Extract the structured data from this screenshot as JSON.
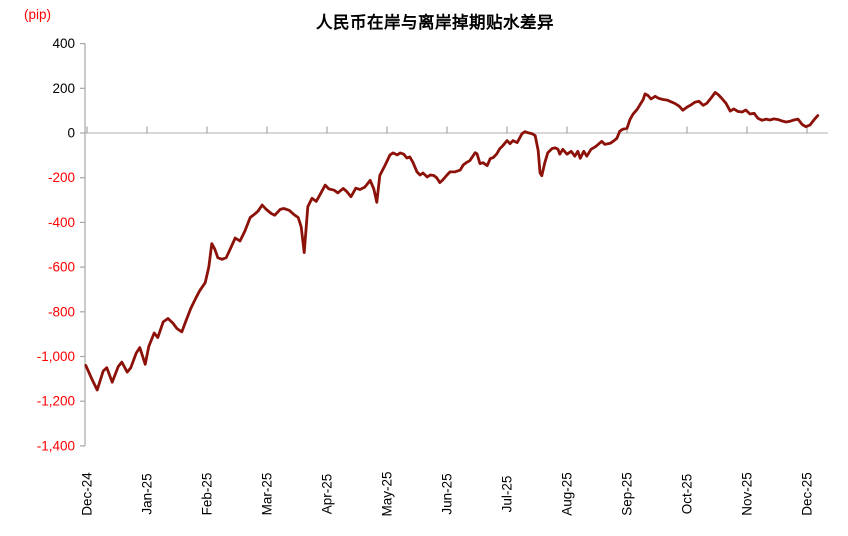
{
  "chart_data": {
    "type": "line",
    "title": "人民币在岸与离岸掉期贴水差异",
    "unit_label": "(pip)",
    "xlabel": "",
    "ylabel": "pip",
    "ylim": [
      -1400,
      400
    ],
    "grid": "zero-line-only",
    "legend": "none",
    "colors": {
      "line": "#8B1109",
      "axis": "#A6A6A6",
      "zero_line": "#C0C0C0",
      "tick_label_positive": "#000000",
      "tick_label_negative": "#FF0000",
      "unit_label": "#FF0000",
      "title": "#000000"
    },
    "y_ticks": [
      {
        "value": 400,
        "label": "400"
      },
      {
        "value": 200,
        "label": "200"
      },
      {
        "value": 0,
        "label": "0"
      },
      {
        "value": -200,
        "label": "-200"
      },
      {
        "value": -400,
        "label": "-400"
      },
      {
        "value": -600,
        "label": "-600"
      },
      {
        "value": -800,
        "label": "-800"
      },
      {
        "value": -1000,
        "label": "-1,000"
      },
      {
        "value": -1200,
        "label": "-1,200"
      },
      {
        "value": -1400,
        "label": "-1,400"
      }
    ],
    "x_tick_labels": [
      "Dec-24",
      "Jan-25",
      "Feb-25",
      "Mar-25",
      "Apr-25",
      "May-25",
      "Jun-25",
      "Jul-25",
      "Aug-25",
      "Sep-25",
      "Oct-25",
      "Nov-25",
      "Dec-25"
    ],
    "series": [
      {
        "x_unit": "months-after-Dec-24-tick",
        "y_unit": "pip",
        "points": [
          [
            -0.02,
            -1040
          ],
          [
            0.08,
            -1100
          ],
          [
            0.17,
            -1150
          ],
          [
            0.27,
            -1065
          ],
          [
            0.33,
            -1050
          ],
          [
            0.42,
            -1115
          ],
          [
            0.52,
            -1045
          ],
          [
            0.58,
            -1025
          ],
          [
            0.67,
            -1070
          ],
          [
            0.73,
            -1050
          ],
          [
            0.82,
            -985
          ],
          [
            0.88,
            -960
          ],
          [
            0.97,
            -1035
          ],
          [
            1.03,
            -955
          ],
          [
            1.12,
            -895
          ],
          [
            1.18,
            -915
          ],
          [
            1.27,
            -845
          ],
          [
            1.35,
            -830
          ],
          [
            1.43,
            -850
          ],
          [
            1.5,
            -875
          ],
          [
            1.58,
            -890
          ],
          [
            1.65,
            -840
          ],
          [
            1.73,
            -785
          ],
          [
            1.82,
            -735
          ],
          [
            1.88,
            -705
          ],
          [
            1.97,
            -670
          ],
          [
            2.03,
            -600
          ],
          [
            2.08,
            -495
          ],
          [
            2.13,
            -520
          ],
          [
            2.18,
            -558
          ],
          [
            2.25,
            -565
          ],
          [
            2.32,
            -558
          ],
          [
            2.4,
            -512
          ],
          [
            2.47,
            -470
          ],
          [
            2.55,
            -483
          ],
          [
            2.63,
            -440
          ],
          [
            2.72,
            -378
          ],
          [
            2.78,
            -366
          ],
          [
            2.85,
            -350
          ],
          [
            2.92,
            -322
          ],
          [
            2.98,
            -340
          ],
          [
            3.07,
            -360
          ],
          [
            3.13,
            -368
          ],
          [
            3.22,
            -342
          ],
          [
            3.28,
            -338
          ],
          [
            3.37,
            -346
          ],
          [
            3.45,
            -365
          ],
          [
            3.52,
            -378
          ],
          [
            3.57,
            -420
          ],
          [
            3.62,
            -535
          ],
          [
            3.68,
            -330
          ],
          [
            3.75,
            -292
          ],
          [
            3.82,
            -306
          ],
          [
            3.88,
            -278
          ],
          [
            3.97,
            -233
          ],
          [
            4.03,
            -250
          ],
          [
            4.12,
            -256
          ],
          [
            4.18,
            -268
          ],
          [
            4.27,
            -248
          ],
          [
            4.33,
            -262
          ],
          [
            4.4,
            -285
          ],
          [
            4.48,
            -247
          ],
          [
            4.55,
            -253
          ],
          [
            4.63,
            -242
          ],
          [
            4.72,
            -212
          ],
          [
            4.78,
            -250
          ],
          [
            4.83,
            -310
          ],
          [
            4.88,
            -190
          ],
          [
            4.97,
            -143
          ],
          [
            5.05,
            -98
          ],
          [
            5.1,
            -89
          ],
          [
            5.17,
            -98
          ],
          [
            5.22,
            -89
          ],
          [
            5.28,
            -95
          ],
          [
            5.33,
            -112
          ],
          [
            5.38,
            -107
          ],
          [
            5.43,
            -130
          ],
          [
            5.5,
            -174
          ],
          [
            5.55,
            -188
          ],
          [
            5.6,
            -179
          ],
          [
            5.67,
            -197
          ],
          [
            5.72,
            -188
          ],
          [
            5.78,
            -190
          ],
          [
            5.83,
            -201
          ],
          [
            5.88,
            -222
          ],
          [
            5.93,
            -210
          ],
          [
            6,
            -188
          ],
          [
            6.05,
            -174
          ],
          [
            6.13,
            -174
          ],
          [
            6.22,
            -166
          ],
          [
            6.27,
            -143
          ],
          [
            6.33,
            -131
          ],
          [
            6.38,
            -124
          ],
          [
            6.47,
            -88
          ],
          [
            6.5,
            -93
          ],
          [
            6.55,
            -137
          ],
          [
            6.6,
            -133
          ],
          [
            6.67,
            -146
          ],
          [
            6.72,
            -115
          ],
          [
            6.77,
            -110
          ],
          [
            6.83,
            -93
          ],
          [
            6.88,
            -70
          ],
          [
            6.93,
            -57
          ],
          [
            7,
            -34
          ],
          [
            7.05,
            -48
          ],
          [
            7.1,
            -34
          ],
          [
            7.17,
            -43
          ],
          [
            7.25,
            -3
          ],
          [
            7.3,
            6
          ],
          [
            7.35,
            1
          ],
          [
            7.42,
            -3
          ],
          [
            7.47,
            -12
          ],
          [
            7.52,
            -79
          ],
          [
            7.55,
            -178
          ],
          [
            7.58,
            -191
          ],
          [
            7.63,
            -133
          ],
          [
            7.68,
            -88
          ],
          [
            7.75,
            -70
          ],
          [
            7.8,
            -66
          ],
          [
            7.85,
            -73
          ],
          [
            7.88,
            -95
          ],
          [
            7.93,
            -73
          ],
          [
            8,
            -95
          ],
          [
            8.07,
            -82
          ],
          [
            8.13,
            -104
          ],
          [
            8.18,
            -82
          ],
          [
            8.22,
            -113
          ],
          [
            8.28,
            -82
          ],
          [
            8.33,
            -104
          ],
          [
            8.4,
            -73
          ],
          [
            8.48,
            -60
          ],
          [
            8.58,
            -37
          ],
          [
            8.63,
            -51
          ],
          [
            8.72,
            -46
          ],
          [
            8.77,
            -37
          ],
          [
            8.83,
            -24
          ],
          [
            8.88,
            8
          ],
          [
            8.93,
            17
          ],
          [
            9,
            21
          ],
          [
            9.05,
            61
          ],
          [
            9.1,
            84
          ],
          [
            9.17,
            106
          ],
          [
            9.22,
            128
          ],
          [
            9.27,
            150
          ],
          [
            9.3,
            175
          ],
          [
            9.35,
            168
          ],
          [
            9.4,
            152
          ],
          [
            9.47,
            164
          ],
          [
            9.53,
            155
          ],
          [
            9.6,
            150
          ],
          [
            9.67,
            147
          ],
          [
            9.73,
            140
          ],
          [
            9.8,
            132
          ],
          [
            9.87,
            120
          ],
          [
            9.93,
            102
          ],
          [
            10,
            116
          ],
          [
            10.07,
            126
          ],
          [
            10.13,
            138
          ],
          [
            10.2,
            142
          ],
          [
            10.27,
            124
          ],
          [
            10.33,
            133
          ],
          [
            10.4,
            156
          ],
          [
            10.47,
            181
          ],
          [
            10.52,
            172
          ],
          [
            10.58,
            155
          ],
          [
            10.65,
            133
          ],
          [
            10.72,
            98
          ],
          [
            10.78,
            108
          ],
          [
            10.85,
            96
          ],
          [
            10.92,
            94
          ],
          [
            10.98,
            103
          ],
          [
            11.05,
            85
          ],
          [
            11.12,
            88
          ],
          [
            11.18,
            66
          ],
          [
            11.25,
            57
          ],
          [
            11.32,
            62
          ],
          [
            11.38,
            58
          ],
          [
            11.45,
            63
          ],
          [
            11.52,
            60
          ],
          [
            11.58,
            54
          ],
          [
            11.65,
            49
          ],
          [
            11.72,
            53
          ],
          [
            11.78,
            58
          ],
          [
            11.85,
            62
          ],
          [
            11.92,
            38
          ],
          [
            11.98,
            28
          ],
          [
            12.05,
            36
          ],
          [
            12.12,
            60
          ],
          [
            12.18,
            78
          ]
        ]
      }
    ]
  }
}
